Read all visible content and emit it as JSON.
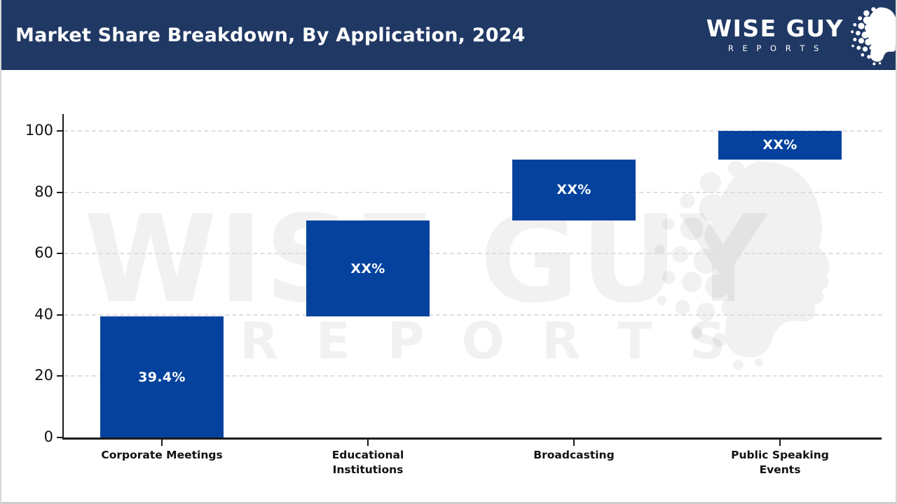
{
  "header": {
    "title": "Market Share Breakdown, By Application, 2024",
    "background_color": "#203864",
    "brand": {
      "name": "WISE GUY",
      "sub": "R E P O R T S"
    }
  },
  "watermark": {
    "line1": "WISE GUY",
    "line2": "R E P O R T S"
  },
  "chart_data": {
    "type": "bar",
    "variant": "floating-waterfall",
    "title": "Market Share Breakdown, By Application, 2024",
    "categories": [
      "Corporate Meetings",
      "Educational Institutions",
      "Broadcasting",
      "Public Speaking Events"
    ],
    "category_label_lines": [
      [
        "Corporate Meetings"
      ],
      [
        "Educational",
        "Institutions"
      ],
      [
        "Broadcasting"
      ],
      [
        "Public Speaking",
        "Events"
      ]
    ],
    "series": [
      {
        "name": "Market share cumulative (%)",
        "segments": [
          {
            "category": "Corporate Meetings",
            "start": 0,
            "end": 39.4,
            "label": "39.4%"
          },
          {
            "category": "Educational Institutions",
            "start": 39.4,
            "end": 70.8,
            "label": "XX%"
          },
          {
            "category": "Broadcasting",
            "start": 70.8,
            "end": 90.7,
            "label": "XX%"
          },
          {
            "category": "Public Speaking Events",
            "start": 90.7,
            "end": 100,
            "label": "XX%"
          }
        ]
      }
    ],
    "xlabel": "",
    "ylabel": "",
    "ylim": [
      0,
      105.5
    ],
    "yticks": [
      0,
      20,
      40,
      60,
      80,
      100
    ],
    "grid": "horizontal-dashed",
    "legend": "none",
    "bar_color": "#04429d",
    "bar_label_color": "#ffffff",
    "axis_color": "#1a1a1a",
    "gridline_color": "#dedede"
  }
}
